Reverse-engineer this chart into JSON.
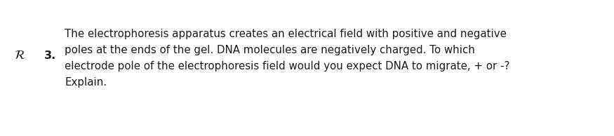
{
  "background_color": "#ffffff",
  "number_label": "3.",
  "line1": "The electrophoresis apparatus creates an electrical field with positive and negative",
  "line2": "poles at the ends of the gel. DNA molecules are negatively charged. To which",
  "line3": "electrode pole of the electrophoresis field would you expect DNA to migrate, + or -?",
  "line4": "Explain.",
  "text_color": "#1a1a1a",
  "font_size": 10.8,
  "number_font_size": 11.5,
  "symbol_font_size": 13,
  "fig_width": 8.75,
  "fig_height": 1.94,
  "dpi": 100
}
